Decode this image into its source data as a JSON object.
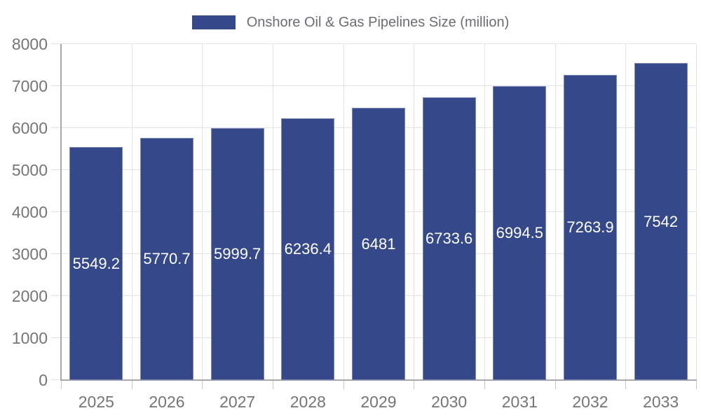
{
  "chart_data": {
    "type": "bar",
    "title": "Onshore Oil & Gas Pipelines Size (million)",
    "legend": "Onshore Oil & Gas Pipelines Size (million)",
    "legend_position": "top",
    "categories": [
      "2025",
      "2026",
      "2027",
      "2028",
      "2029",
      "2030",
      "2031",
      "2032",
      "2033"
    ],
    "values": [
      5549.2,
      5770.7,
      5999.7,
      6236.4,
      6481,
      6733.6,
      6994.5,
      7263.9,
      7542
    ],
    "value_labels": [
      "5549.2",
      "5770.7",
      "5999.7",
      "6236.4",
      "6481",
      "6733.6",
      "6994.5",
      "7263.9",
      "7542"
    ],
    "xlabel": "",
    "ylabel": "",
    "ylim": [
      0,
      8000
    ],
    "yticks": [
      0,
      1000,
      2000,
      3000,
      4000,
      5000,
      6000,
      7000,
      8000
    ],
    "grid": true,
    "colors": {
      "bar": "#35498a",
      "bar_border": "#7e89bc",
      "grid": "#e3e3e5",
      "axis": "#a8a8a8",
      "x_tick": "#c9c9c9",
      "y_tick": "#e0e0e0",
      "tick_label": "#757575",
      "value_label": "#ffffff",
      "legend_text": "#6c6c74"
    }
  }
}
